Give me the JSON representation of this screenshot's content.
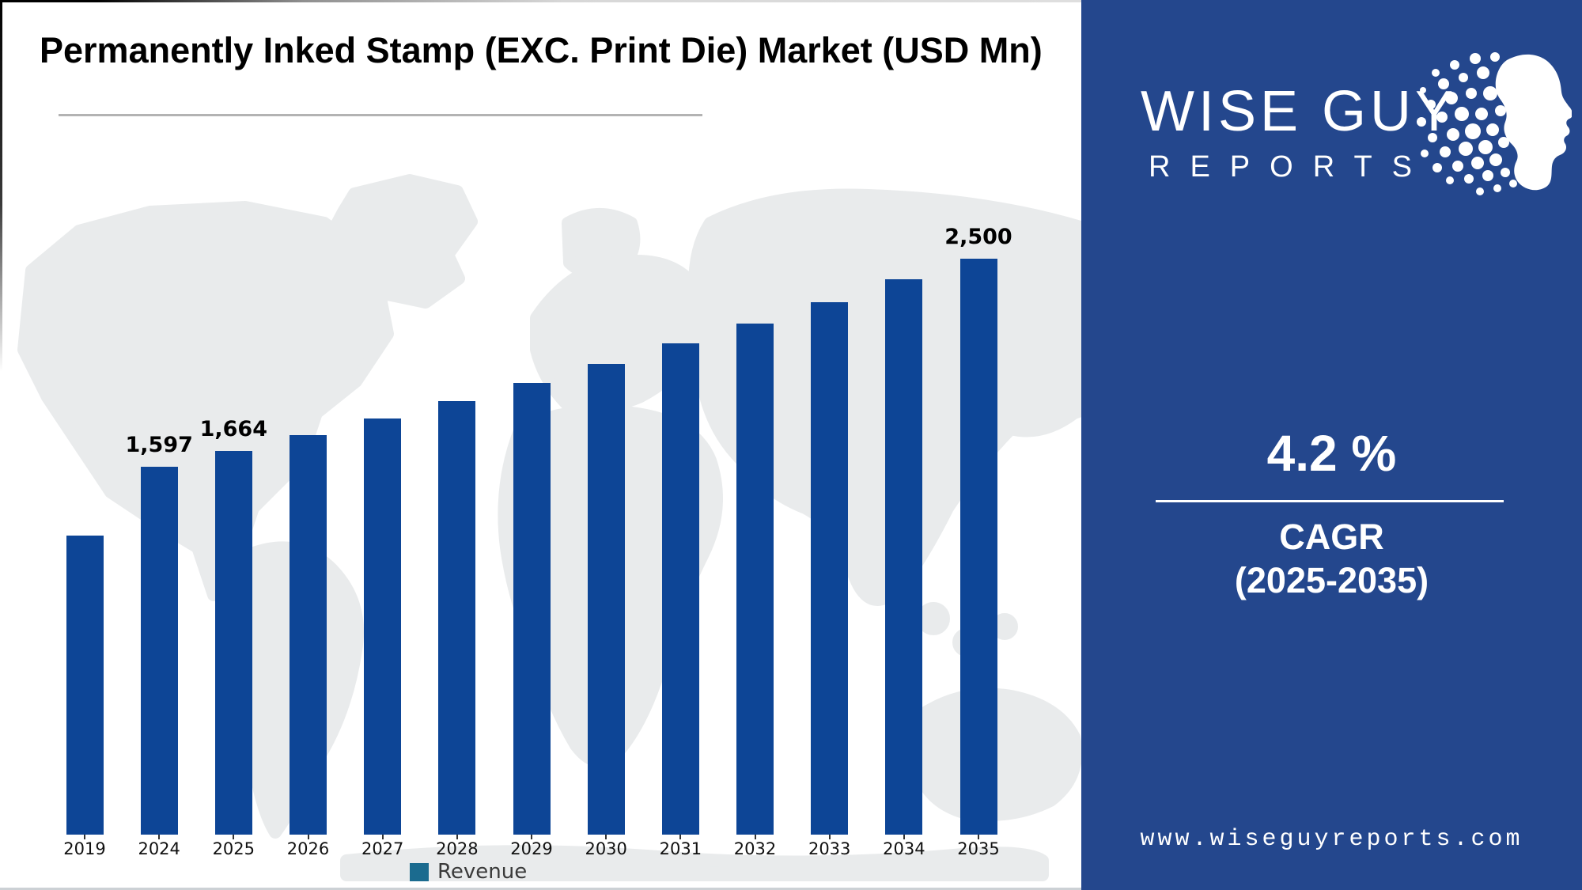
{
  "chart_data": {
    "type": "bar",
    "title": "Permanently Inked Stamp (EXC. Print Die) Market (USD Mn)",
    "unit": "USD Mn",
    "categories": [
      "2019",
      "2024",
      "2025",
      "2026",
      "2027",
      "2028",
      "2029",
      "2030",
      "2031",
      "2032",
      "2033",
      "2034",
      "2035"
    ],
    "values": [
      1298,
      1597,
      1664,
      1734,
      1807,
      1883,
      1962,
      2044,
      2131,
      2219,
      2312,
      2409,
      2500
    ],
    "labeled_points": {
      "2024": "1,597",
      "2025": "1,664",
      "2035": "2,500"
    },
    "legend": [
      {
        "label": "Revenue",
        "color": "#1b6b8f"
      }
    ],
    "legend_position": "bottom",
    "bar_color": "#0d4596",
    "ylim": [
      0,
      2570
    ],
    "grid": false,
    "xlabel": "",
    "ylabel": ""
  },
  "sidebar": {
    "background": "#24478d",
    "logo": {
      "line1": "WISE GUY",
      "line2": "REPORTS"
    },
    "cagr_value": "4.2 %",
    "cagr_label_line1": "CAGR",
    "cagr_label_line2": "(2025-2035)",
    "website": "www.wiseguyreports.com"
  }
}
